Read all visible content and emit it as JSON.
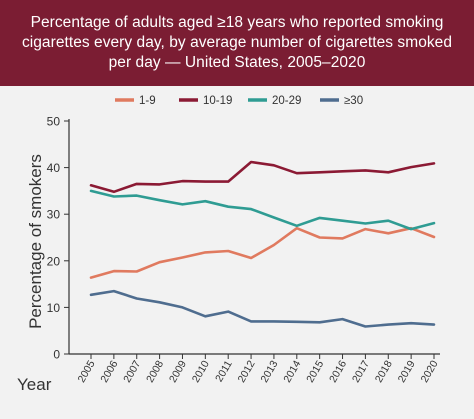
{
  "header": {
    "title": "Percentage of adults aged ≥18 years who reported smoking cigarettes every day, by average number of cigarettes smoked per day — United States, 2005–2020"
  },
  "chart_data": {
    "type": "line",
    "title": "Percentage of adults aged ≥18 years who reported smoking cigarettes every day, by average number of cigarettes smoked per day — United States, 2005–2020",
    "xlabel": "Year",
    "ylabel": "Percentage of smokers",
    "ylim": [
      0,
      50
    ],
    "yticks": [
      "0",
      "10",
      "20",
      "30",
      "40",
      "50"
    ],
    "legend_position": "top",
    "grid": false,
    "x": [
      "2005",
      "2006",
      "2007",
      "2008",
      "2009",
      "2010",
      "2011",
      "2012",
      "2013",
      "2014",
      "2015",
      "2016",
      "2017",
      "2018",
      "2019",
      "2020"
    ],
    "series": [
      {
        "name": "1-9",
        "color": "#e07a5f",
        "values": [
          16.4,
          17.8,
          17.7,
          19.7,
          20.7,
          21.8,
          22.1,
          20.6,
          23.4,
          27.0,
          25.0,
          24.8,
          26.8,
          25.9,
          27.0,
          25.1
        ]
      },
      {
        "name": "10-19",
        "color": "#8b1a34",
        "values": [
          36.2,
          34.8,
          36.5,
          36.4,
          37.1,
          37.0,
          37.0,
          41.2,
          40.5,
          38.8,
          39.0,
          39.2,
          39.4,
          39.0,
          40.1,
          40.9
        ]
      },
      {
        "name": "20-29",
        "color": "#2f9c93",
        "values": [
          35.0,
          33.8,
          34.0,
          33.0,
          32.1,
          32.8,
          31.6,
          31.1,
          29.3,
          27.5,
          29.2,
          28.6,
          28.0,
          28.6,
          26.8,
          28.1
        ]
      },
      {
        "name": "≥30",
        "color": "#4f6d8f",
        "values": [
          12.7,
          13.5,
          11.9,
          11.1,
          10.0,
          8.1,
          9.1,
          7.0,
          7.0,
          6.9,
          6.8,
          7.5,
          5.9,
          6.3,
          6.6,
          6.3
        ]
      }
    ]
  }
}
